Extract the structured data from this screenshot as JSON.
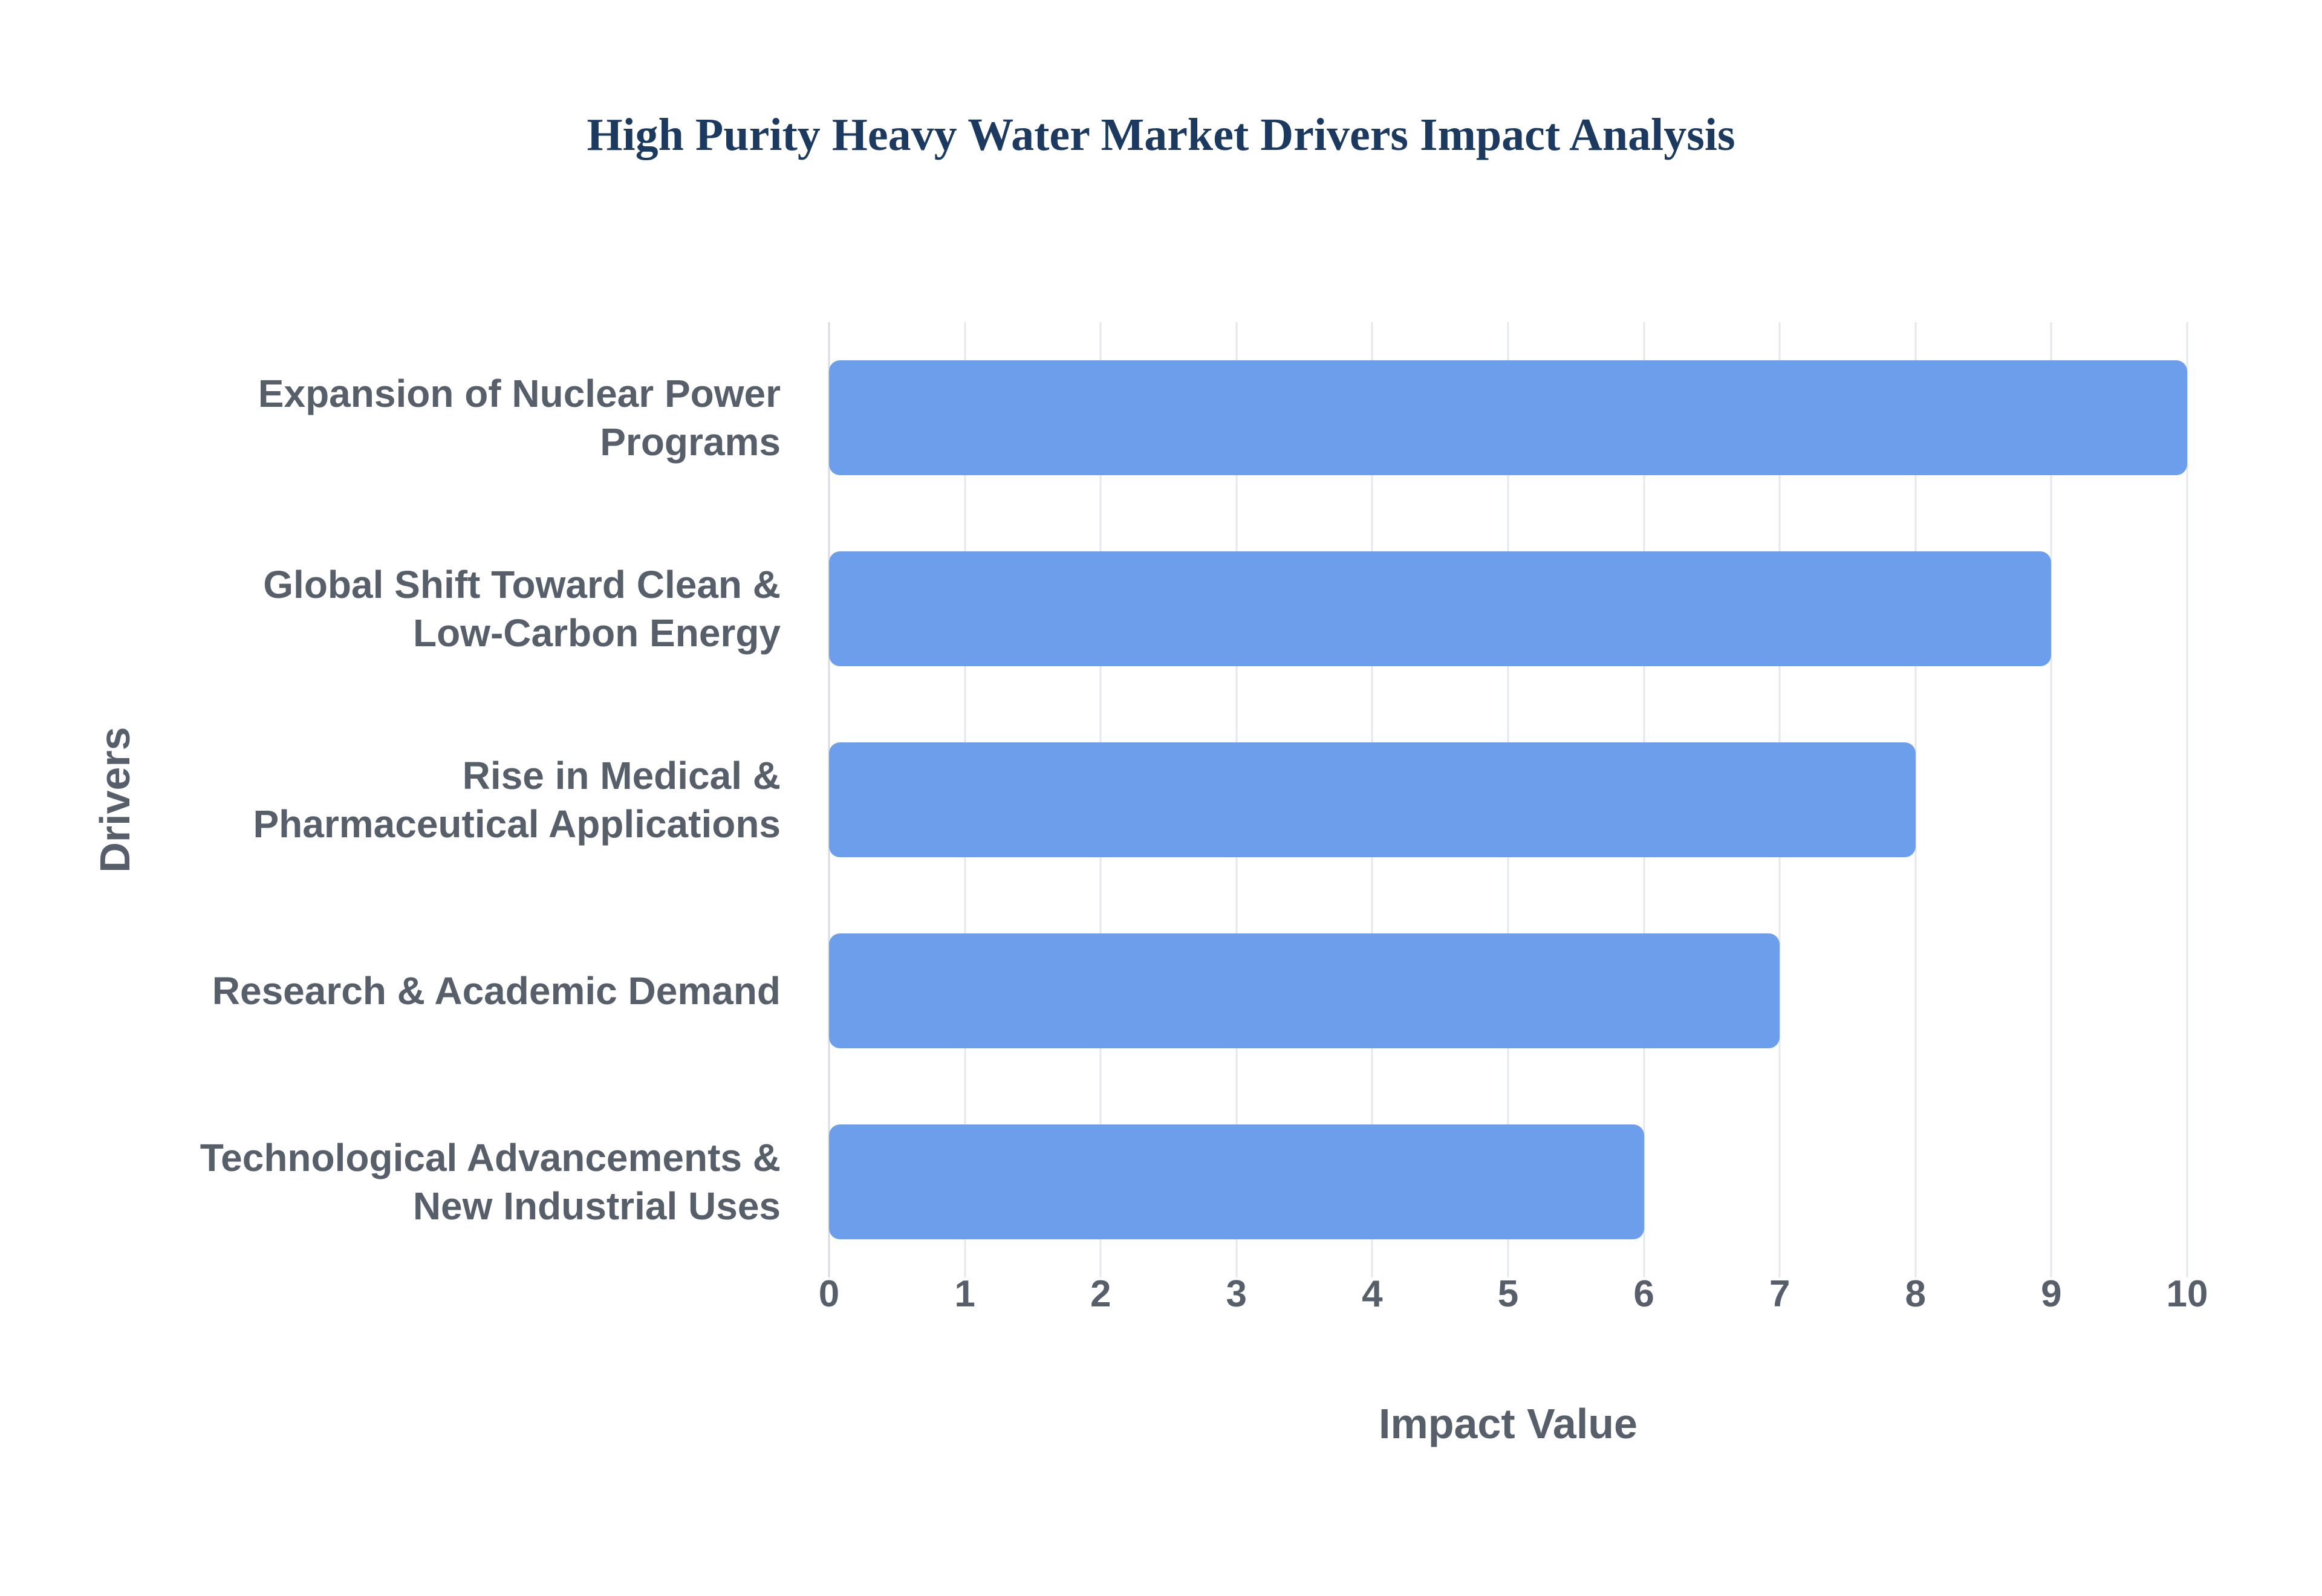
{
  "chart_data": {
    "type": "bar",
    "orientation": "horizontal",
    "title": "High Purity Heavy Water Market Drivers Impact Analysis",
    "categories": [
      "Expansion of Nuclear Power Programs",
      "Global Shift Toward Clean & Low-Carbon Energy",
      "Rise in Medical & Pharmaceutical Applications",
      "Research & Academic Demand",
      "Technological Advancements & New Industrial Uses"
    ],
    "category_label_lines": [
      [
        "Expansion of Nuclear Power",
        "Programs"
      ],
      [
        "Global Shift Toward Clean &",
        "Low-Carbon Energy"
      ],
      [
        "Rise in Medical &",
        "Pharmaceutical Applications"
      ],
      [
        "Research & Academic Demand"
      ],
      [
        "Technological Advancements &",
        "New Industrial Uses"
      ]
    ],
    "values": [
      10,
      9,
      8,
      7,
      6
    ],
    "xlabel": "Impact Value",
    "ylabel": "Drivers",
    "xlim": [
      0,
      10
    ],
    "xticks": [
      0,
      1,
      2,
      3,
      4,
      5,
      6,
      7,
      8,
      9,
      10
    ],
    "grid": true,
    "legend": "none",
    "colors": {
      "bar": "#6d9eeb",
      "title": "#1c3a5f",
      "text": "#57606a",
      "grid": "#e4e7eb",
      "zero_line": "#d8dbe0",
      "background": "#ffffff"
    }
  }
}
